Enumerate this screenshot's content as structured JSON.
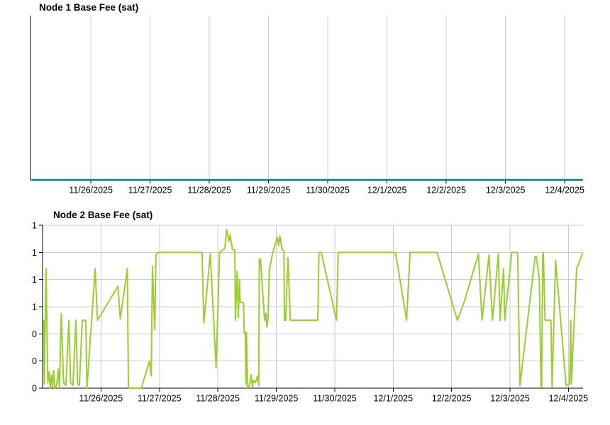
{
  "page": {
    "background": "#ffffff",
    "grid_color": "#cccccc",
    "axis_color": "#000000",
    "label_color": "#000000"
  },
  "chart_data": [
    {
      "type": "line",
      "title": "Node 1 Base Fee (sat)",
      "xlabel": "",
      "ylabel": "",
      "x_unit": "days from 11/25/2025 00:00",
      "xlim_days": [
        -0.02,
        9.31
      ],
      "x_tick_days": [
        1,
        2,
        3,
        4,
        5,
        6,
        7,
        8,
        9
      ],
      "x_tick_labels": [
        "11/26/2025",
        "11/27/2025",
        "11/28/2025",
        "11/29/2025",
        "11/30/2025",
        "12/1/2025",
        "12/2/2025",
        "12/3/2025",
        "12/4/2025"
      ],
      "ylim": [
        0,
        1
      ],
      "y_ticks": [],
      "y_tick_labels": [],
      "grid": "vertical-only",
      "legend": "none",
      "line_color": "#008080",
      "line_width": 2.5,
      "points": [
        [
          0.01,
          0
        ],
        [
          9.29,
          0
        ]
      ]
    },
    {
      "type": "line",
      "title": "Node 2 Base Fee (sat)",
      "xlabel": "",
      "ylabel": "",
      "x_unit": "days from 11/25/2025 00:00",
      "xlim_days": [
        0,
        9.25
      ],
      "x_tick_days": [
        1,
        2,
        3,
        4,
        5,
        6,
        7,
        8,
        9
      ],
      "x_tick_labels": [
        "11/26/2025",
        "11/27/2025",
        "11/28/2025",
        "11/29/2025",
        "11/30/2025",
        "12/1/2025",
        "12/2/2025",
        "12/3/2025",
        "12/4/2025"
      ],
      "ylim": [
        0,
        1.2
      ],
      "y_ticks": [
        0,
        0.2,
        0.4,
        0.6,
        0.8,
        1.0,
        1.2
      ],
      "y_tick_labels": [
        "0",
        "0",
        "0",
        "1",
        "1",
        "1",
        "1"
      ],
      "grid": "both",
      "legend": "none",
      "line_color": "#9ACD32",
      "line_width": 2,
      "points": [
        [
          0.02,
          0.5
        ],
        [
          0.03,
          0.03
        ],
        [
          0.06,
          0.88
        ],
        [
          0.09,
          0.04
        ],
        [
          0.11,
          0.12
        ],
        [
          0.13,
          0
        ],
        [
          0.15,
          0.1
        ],
        [
          0.17,
          0.01
        ],
        [
          0.19,
          0.13
        ],
        [
          0.21,
          0
        ],
        [
          0.24,
          0.02
        ],
        [
          0.27,
          0.14
        ],
        [
          0.29,
          0
        ],
        [
          0.32,
          0.55
        ],
        [
          0.36,
          0.04
        ],
        [
          0.4,
          0.02
        ],
        [
          0.45,
          0.5
        ],
        [
          0.48,
          0.04
        ],
        [
          0.52,
          0.02
        ],
        [
          0.57,
          0.5
        ],
        [
          0.6,
          0.03
        ],
        [
          0.63,
          0.02
        ],
        [
          0.68,
          0.5
        ],
        [
          0.74,
          0.5
        ],
        [
          0.76,
          0
        ],
        [
          0.9,
          0.88
        ],
        [
          0.94,
          0.5
        ],
        [
          1.29,
          0.75
        ],
        [
          1.33,
          0.51
        ],
        [
          1.45,
          0.88
        ],
        [
          1.47,
          0
        ],
        [
          1.69,
          0
        ],
        [
          1.83,
          0.2
        ],
        [
          1.86,
          0.09
        ],
        [
          1.88,
          0.9
        ],
        [
          1.92,
          0.43
        ],
        [
          1.94,
          0.98
        ],
        [
          1.97,
          1
        ],
        [
          2.73,
          1
        ],
        [
          2.76,
          0.48
        ],
        [
          2.87,
          0.99
        ],
        [
          2.97,
          0.15
        ],
        [
          3.03,
          1
        ],
        [
          3.12,
          1.03
        ],
        [
          3.15,
          1.17
        ],
        [
          3.19,
          1.08
        ],
        [
          3.21,
          1.13
        ],
        [
          3.25,
          1.02
        ],
        [
          3.29,
          1.02
        ],
        [
          3.3,
          0.5
        ],
        [
          3.33,
          0.86
        ],
        [
          3.35,
          0.52
        ],
        [
          3.37,
          0.8
        ],
        [
          3.38,
          0.64
        ],
        [
          3.4,
          0.63
        ],
        [
          3.44,
          0.63
        ],
        [
          3.45,
          0.41
        ],
        [
          3.47,
          0.41
        ],
        [
          3.48,
          0.03
        ],
        [
          3.49,
          0.41
        ],
        [
          3.51,
          0
        ],
        [
          3.54,
          0.02
        ],
        [
          3.57,
          0.1
        ],
        [
          3.59,
          0.01
        ],
        [
          3.61,
          0.06
        ],
        [
          3.64,
          0.04
        ],
        [
          3.68,
          0.09
        ],
        [
          3.7,
          0.02
        ],
        [
          3.71,
          0.95
        ],
        [
          3.73,
          0.95
        ],
        [
          3.8,
          0.5
        ],
        [
          3.82,
          0.55
        ],
        [
          3.84,
          0.45
        ],
        [
          3.86,
          0.52
        ],
        [
          3.88,
          0.87
        ],
        [
          3.94,
          1
        ],
        [
          4.02,
          1.11
        ],
        [
          4.04,
          1.05
        ],
        [
          4.06,
          1.12
        ],
        [
          4.1,
          1.02
        ],
        [
          4.13,
          1.01
        ],
        [
          4.14,
          0.5
        ],
        [
          4.16,
          0.5
        ],
        [
          4.2,
          0.96
        ],
        [
          4.24,
          0.5
        ],
        [
          4.26,
          0.5
        ],
        [
          4.71,
          0.5
        ],
        [
          4.73,
          1
        ],
        [
          4.77,
          1
        ],
        [
          5.03,
          0.5
        ],
        [
          5.06,
          1
        ],
        [
          6.04,
          1
        ],
        [
          6.23,
          0.5
        ],
        [
          6.29,
          1
        ],
        [
          6.75,
          1
        ],
        [
          7.1,
          0.5
        ],
        [
          7.22,
          0.64
        ],
        [
          7.46,
          0.99
        ],
        [
          7.52,
          0.5
        ],
        [
          7.64,
          0.98
        ],
        [
          7.7,
          0.5
        ],
        [
          7.8,
          0.99
        ],
        [
          7.83,
          0.5
        ],
        [
          7.89,
          0.88
        ],
        [
          7.91,
          0.5
        ],
        [
          8.03,
          1
        ],
        [
          8.13,
          1
        ],
        [
          8.17,
          0.02
        ],
        [
          8.43,
          0.97
        ],
        [
          8.45,
          0.97
        ],
        [
          8.5,
          0.81
        ],
        [
          8.53,
          0.02
        ],
        [
          8.54,
          0.01
        ],
        [
          8.56,
          0.98
        ],
        [
          8.57,
          1
        ],
        [
          8.6,
          0.5
        ],
        [
          8.7,
          0.5
        ],
        [
          8.72,
          0.01
        ],
        [
          8.78,
          0.94
        ],
        [
          8.96,
          0.02
        ],
        [
          9.02,
          0.03
        ],
        [
          9.04,
          0.5
        ],
        [
          9.05,
          0.03
        ],
        [
          9.14,
          0.88
        ],
        [
          9.24,
          0.99
        ]
      ]
    }
  ]
}
